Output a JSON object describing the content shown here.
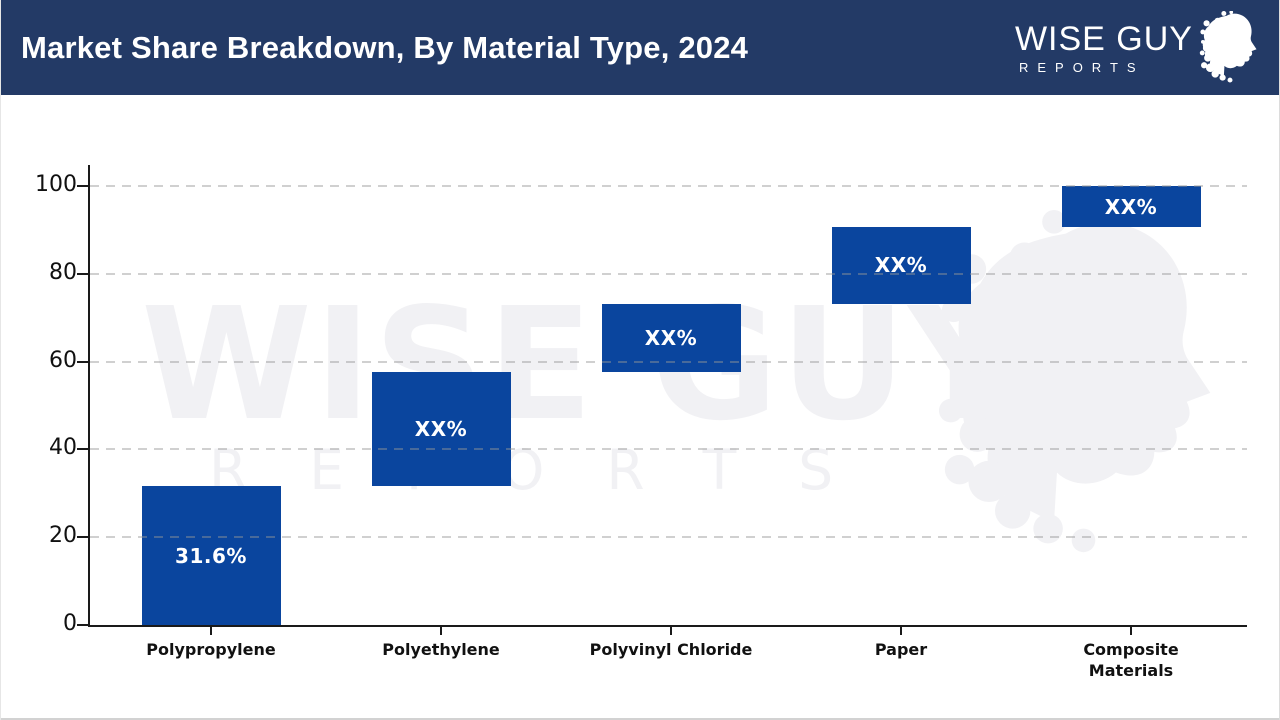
{
  "header": {
    "title": "Market Share Breakdown, By Material Type, 2024",
    "logo": {
      "name": "WISE GUY",
      "subtitle": "REPORTS"
    }
  },
  "watermark": {
    "line1": "WISE GUY",
    "line2": "REPORTS"
  },
  "colors": {
    "header_bg": "#233a66",
    "bar_blue": "#0a459e",
    "axis": "#1a1a1a",
    "gridline": "#d9d9d9",
    "watermark": "#f1f1f4",
    "bar_label": "#ffffff"
  },
  "chart_data": {
    "type": "bar",
    "subtype": "waterfall",
    "title": "Market Share Breakdown, By Material Type, 2024",
    "categories": [
      "Polypropylene",
      "Polyethylene",
      "Polyvinyl Chloride",
      "Paper",
      "Composite Materials"
    ],
    "category_label_lines": [
      [
        "Polypropylene"
      ],
      [
        "Polyethylene"
      ],
      [
        "Polyvinyl Chloride"
      ],
      [
        "Paper"
      ],
      [
        "Composite",
        "Materials"
      ]
    ],
    "segments": [
      [
        0,
        31.6
      ],
      [
        31.6,
        57.6
      ],
      [
        57.6,
        73.2
      ],
      [
        73.2,
        90.6
      ],
      [
        90.6,
        100
      ]
    ],
    "bar_labels": [
      "31.6%",
      "XX%",
      "XX%",
      "XX%",
      "XX%"
    ],
    "yticks": [
      0,
      20,
      40,
      60,
      80,
      100
    ],
    "ylim": [
      0,
      105
    ],
    "xlabel": "",
    "ylabel": "",
    "grid": "horizontal dashed, drawn over bars",
    "legend": "none"
  }
}
